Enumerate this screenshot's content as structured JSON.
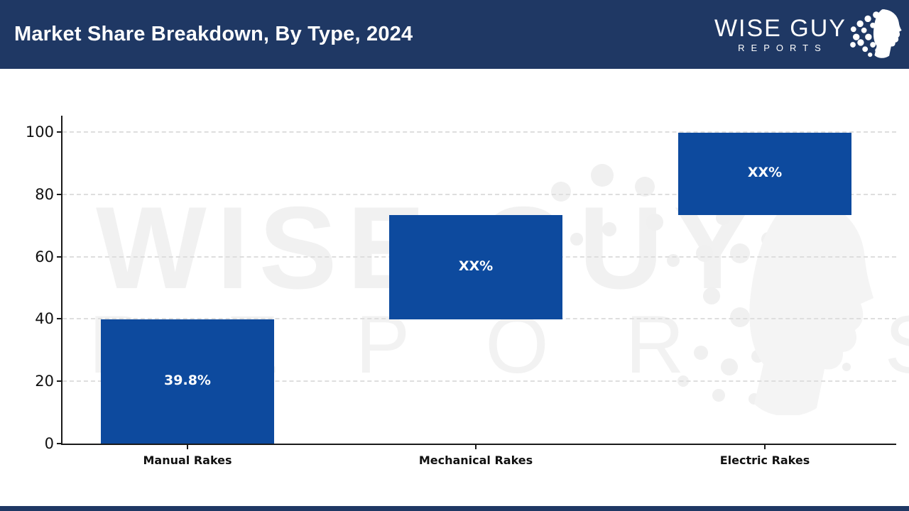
{
  "header": {
    "title": "Market Share Breakdown, By Type, 2024",
    "logo": {
      "wordmark": "WISE GUY",
      "subtext": "REPORTS"
    }
  },
  "watermark": {
    "wordmark": "WISE GUY",
    "subtext": "R E P O R T S"
  },
  "chart_data": {
    "type": "bar",
    "variant": "stacked-progression-waterfall",
    "title": "Market Share Breakdown, By Type, 2024",
    "categories": [
      "Manual Rakes",
      "Mechanical Rakes",
      "Electric Rakes"
    ],
    "segments": [
      {
        "category": "Manual Rakes",
        "start": 0,
        "end": 39.8,
        "label": "39.8%"
      },
      {
        "category": "Mechanical Rakes",
        "start": 39.8,
        "end": 73.3,
        "label": "XX%"
      },
      {
        "category": "Electric Rakes",
        "start": 73.3,
        "end": 99.8,
        "label": "XX%"
      }
    ],
    "xlabel": "",
    "ylabel": "",
    "y_ticks": [
      0,
      20,
      40,
      60,
      80,
      100
    ],
    "ylim": [
      0,
      105
    ],
    "grid": "horizontal-dashed",
    "legend": "none",
    "colors": {
      "bar": "#0d4a9e",
      "bar_label": "#ffffff",
      "axis": "#1a1a1a",
      "gridline": "#dedede",
      "header_bg": "#1f3864",
      "watermark": "#f1f1f1"
    }
  }
}
